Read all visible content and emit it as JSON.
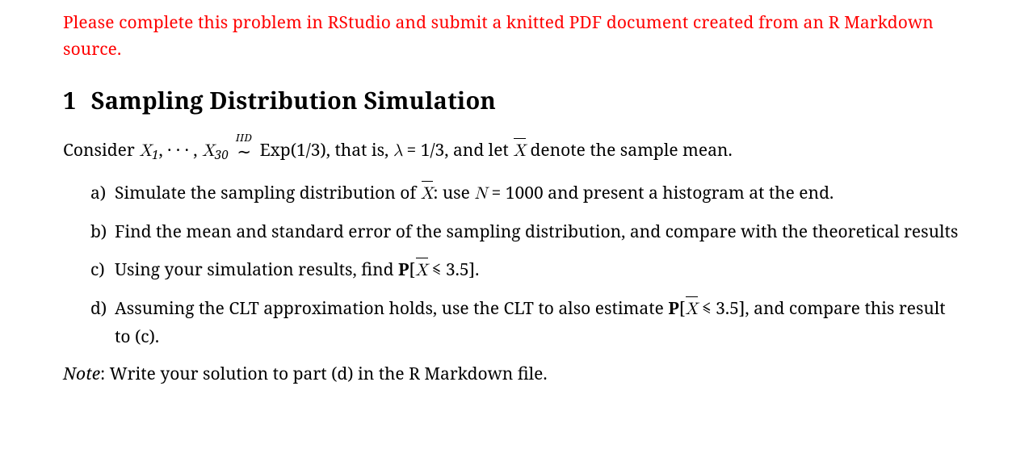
{
  "instruction": {
    "line1": "Please complete this problem in RStudio and submit a knitted PDF document created from an R Markdown",
    "line2": "source.",
    "color": "#ff0000"
  },
  "section": {
    "number": "1",
    "title": "Sampling Distribution Simulation"
  },
  "intro": {
    "prefix": "Consider ",
    "X1": "X",
    "sub1": "1",
    "dots": ", · · · , ",
    "X30": "X",
    "sub30": "30",
    "iid_label": "IID",
    "dist": " Exp(1/3), that is, ",
    "lambda": "λ",
    "eq": " = 1/3, and let ",
    "xbar": "X",
    "suffix": " denote the sample mean."
  },
  "items": {
    "a": {
      "label": "a)",
      "t1": "Simulate the sampling distribution of ",
      "xbar": "X",
      "t2": ": use ",
      "N": "N",
      "t3": " = 1000 and present a histogram at the end."
    },
    "b": {
      "label": "b)",
      "text": "Find the mean and standard error of the sampling distribution, and compare with the theoretical results"
    },
    "c": {
      "label": "c)",
      "t1": "Using your simulation results, find ",
      "P": "P",
      "lbr": "[",
      "xbar": "X",
      "cond": " ≤ 3.5].",
      "cond_num": "3.5"
    },
    "d": {
      "label": "d)",
      "t1": "Assuming the CLT approximation holds, use the CLT to also estimate ",
      "P": "P",
      "lbr": "[",
      "xbar": "X",
      "cond": " ≤ 3.5], and compare this result",
      "t2": "to (c)."
    }
  },
  "note": {
    "label": "Note",
    "text": ": Write your solution to part (d) in the R Markdown file."
  }
}
